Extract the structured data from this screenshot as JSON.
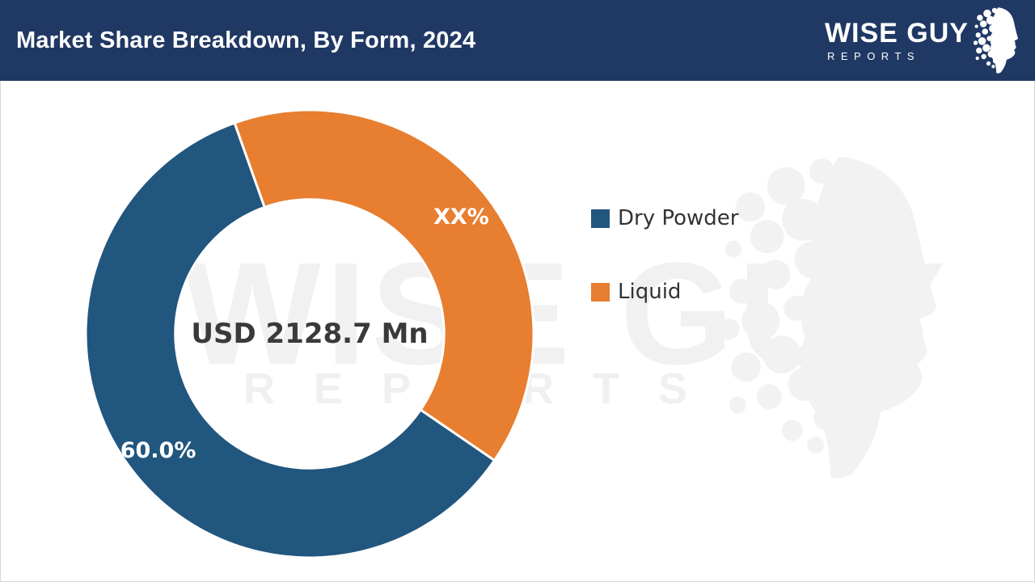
{
  "header": {
    "title": "Market Share Breakdown, By Form, 2024",
    "bg_color": "#203864",
    "logo": {
      "line1": "WISE GUY",
      "line2": "REPORTS"
    }
  },
  "watermark": {
    "line1": "WISE GUY",
    "line2": "REPORTS"
  },
  "colors": {
    "header_bg": "#203864",
    "dry_powder_blue": "#21567E",
    "liquid_orange": "#E87E2F",
    "center_text": "#3A3A3A",
    "legend_text": "#333333",
    "slice_label_text": "#FFFFFF",
    "watermark_gray": "#F1F1F1",
    "content_border": "#D7D7D7"
  },
  "chart_data": {
    "type": "pie",
    "donut": true,
    "title": "Market Share Breakdown, By Form, 2024",
    "center_label": "USD 2128.7 Mn",
    "values_unit": "%",
    "inner_radius_ratio": 0.6,
    "start_angle_deg": 124.4,
    "legend_position": "right",
    "slices": [
      {
        "label": "Dry Powder",
        "value": 60.0,
        "display_label": "60.0%",
        "color": "#21567E"
      },
      {
        "label": "Liquid",
        "value": 40.0,
        "display_label": "XX%",
        "color": "#E87E2F"
      }
    ]
  }
}
